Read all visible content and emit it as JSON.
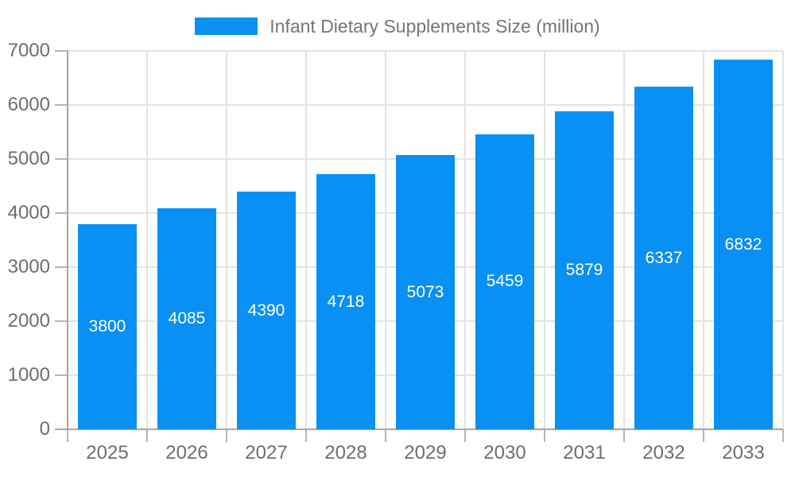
{
  "chart_data": {
    "type": "bar",
    "title": "",
    "legend": {
      "label": "Infant Dietary Supplements Size (million)",
      "position": "top-center"
    },
    "categories": [
      "2025",
      "2026",
      "2027",
      "2028",
      "2029",
      "2030",
      "2031",
      "2032",
      "2033"
    ],
    "series": [
      {
        "name": "Infant Dietary Supplements Size (million)",
        "values": [
          3800,
          4085,
          4390,
          4718,
          5073,
          5459,
          5879,
          6337,
          6832
        ]
      }
    ],
    "value_labels": [
      "3800",
      "4085",
      "4390",
      "4718",
      "5073",
      "5459",
      "5879",
      "6337",
      "6832"
    ],
    "value_label_position": "inside-center",
    "xlabel": "",
    "ylabel": "",
    "ylim": [
      0,
      7000
    ],
    "y_tick_step": 1000,
    "y_tick_labels": [
      "0",
      "1000",
      "2000",
      "3000",
      "4000",
      "5000",
      "6000",
      "7000"
    ],
    "grid": "horizontal-and-vertical",
    "colors": {
      "bar": "#0990f5",
      "value_text": "#ffffff",
      "axis_text": "#6e6e6e",
      "legend_text": "#757575",
      "grid_line": "#e3e3e3",
      "axis_line": "#a6a6a6",
      "tick_mark": "#b5b5b5",
      "background": "#ffffff"
    }
  }
}
